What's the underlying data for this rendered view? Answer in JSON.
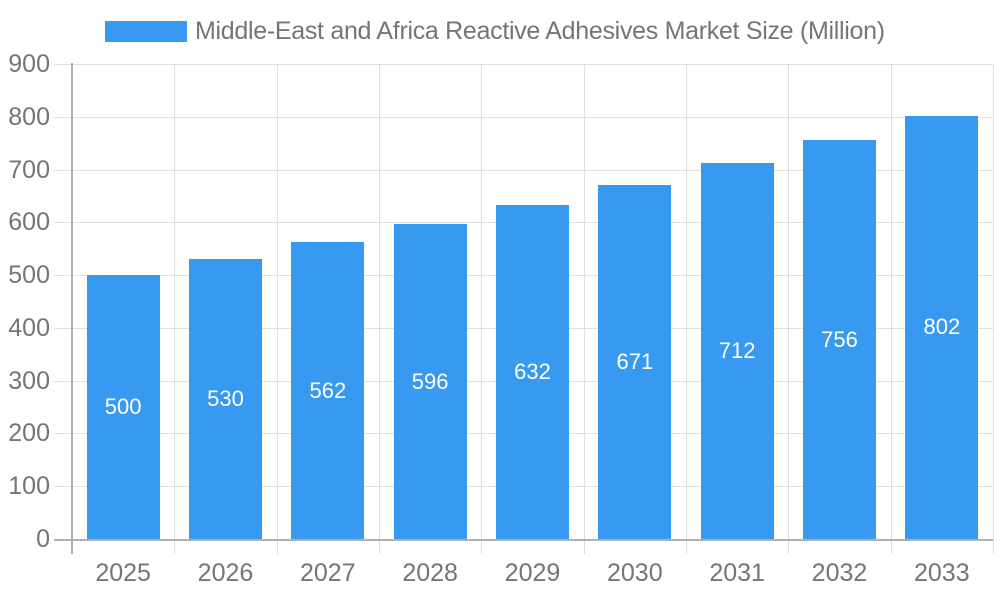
{
  "chart_data": {
    "type": "bar",
    "title": "Middle-East and Africa Reactive Adhesives Market Size (Million)",
    "categories": [
      "2025",
      "2026",
      "2027",
      "2028",
      "2029",
      "2030",
      "2031",
      "2032",
      "2033"
    ],
    "values": [
      500,
      530,
      562,
      596,
      632,
      671,
      712,
      756,
      802
    ],
    "xlabel": "",
    "ylabel": "",
    "ylim": [
      0,
      900
    ],
    "yticks": [
      0,
      100,
      200,
      300,
      400,
      500,
      600,
      700,
      800,
      900
    ],
    "grid": true,
    "legend_position": "top",
    "value_labels": "inside-center",
    "colors": {
      "bar": "#3899f0",
      "grid": "#e0e0e0",
      "axis_line": "#b0b0b0",
      "axis_text": "#757575",
      "value_text": "#ffffff"
    }
  }
}
